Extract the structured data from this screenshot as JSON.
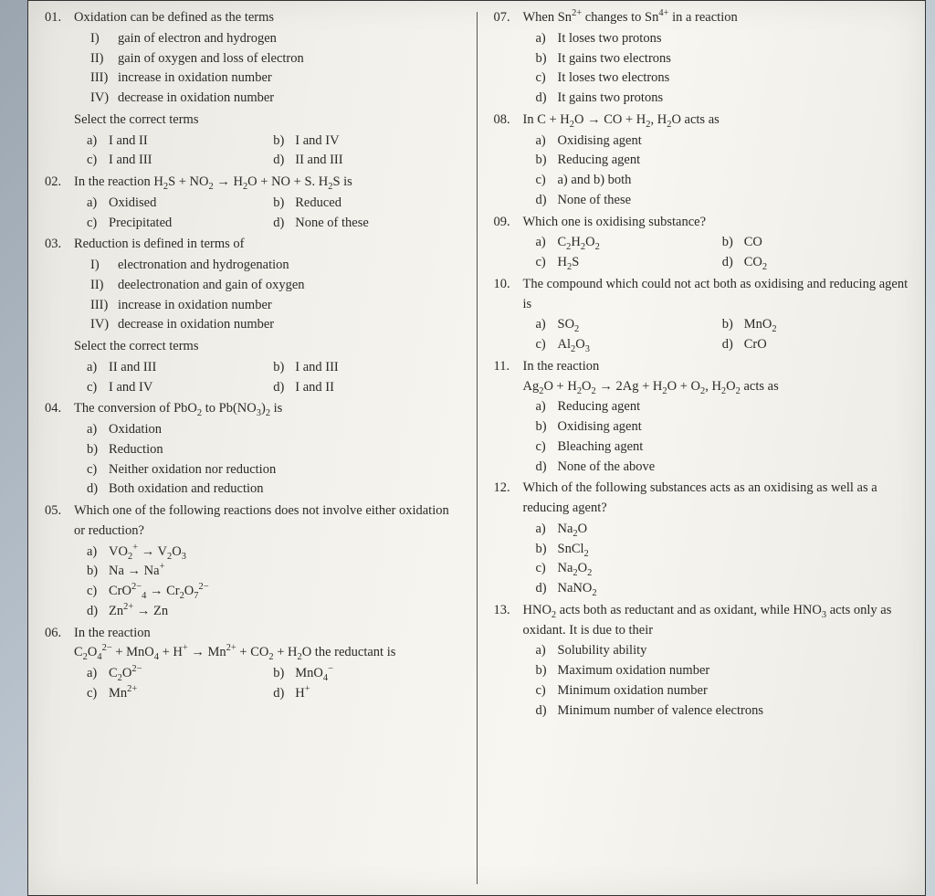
{
  "left": [
    {
      "num": "01.",
      "stem": "Oxidation can be defined as the terms",
      "romans": [
        {
          "n": "I)",
          "t": "gain of electron and hydrogen"
        },
        {
          "n": "II)",
          "t": "gain of oxygen and loss of electron"
        },
        {
          "n": "III)",
          "t": "increase in oxidation number"
        },
        {
          "n": "IV)",
          "t": "decrease in oxidation number"
        }
      ],
      "select": "Select the correct terms",
      "opts": [
        {
          "n": "a)",
          "t": "I and II"
        },
        {
          "n": "b)",
          "t": "I and IV"
        },
        {
          "n": "c)",
          "t": "I and III"
        },
        {
          "n": "d)",
          "t": "II and III"
        }
      ],
      "cols": 2
    },
    {
      "num": "02.",
      "stem_html": "In the reaction H<sub>2</sub>S + NO<sub>2</sub> → H<sub>2</sub>O + NO + S. H<sub>2</sub>S is",
      "opts": [
        {
          "n": "a)",
          "t": "Oxidised"
        },
        {
          "n": "b)",
          "t": "Reduced"
        },
        {
          "n": "c)",
          "t": "Precipitated"
        },
        {
          "n": "d)",
          "t": "None of these"
        }
      ],
      "cols": 2
    },
    {
      "num": "03.",
      "stem": "Reduction is defined in terms of",
      "romans": [
        {
          "n": "I)",
          "t": "electronation and hydrogenation"
        },
        {
          "n": "II)",
          "t": "deelectronation and gain of oxygen"
        },
        {
          "n": "III)",
          "t": "increase in oxidation number"
        },
        {
          "n": "IV)",
          "t": "decrease in oxidation number"
        }
      ],
      "select": "Select the correct terms",
      "opts": [
        {
          "n": "a)",
          "t": "II and III"
        },
        {
          "n": "b)",
          "t": "I and III"
        },
        {
          "n": "c)",
          "t": "I and IV"
        },
        {
          "n": "d)",
          "t": "I and II"
        }
      ],
      "cols": 2
    },
    {
      "num": "04.",
      "stem_html": "The conversion of PbO<sub>2</sub> to Pb(NO<sub>3</sub>)<sub>2</sub> is",
      "opts": [
        {
          "n": "a)",
          "t": "Oxidation"
        },
        {
          "n": "b)",
          "t": "Reduction"
        },
        {
          "n": "c)",
          "t": "Neither oxidation nor reduction"
        },
        {
          "n": "d)",
          "t": "Both oxidation and reduction"
        }
      ],
      "cols": 1
    },
    {
      "num": "05.",
      "stem": "Which one of the following reactions does not involve either oxidation or reduction?",
      "opts": [
        {
          "n": "a)",
          "html": "VO<sub>2</sub><sup>+</sup> → V<sub>2</sub>O<sub>3</sub>"
        },
        {
          "n": "b)",
          "html": "Na → Na<sup>+</sup>"
        },
        {
          "n": "c)",
          "html": "CrO<sup>2−</sup><sub>4</sub> → Cr<sub>2</sub>O<sub>7</sub><sup>2−</sup>"
        },
        {
          "n": "d)",
          "html": "Zn<sup>2+</sup> → Zn"
        }
      ],
      "cols": 1
    },
    {
      "num": "06.",
      "stem_html": "In the reaction<br>C<sub>2</sub>O<sub>4</sub><sup>2−</sup> + MnO<sub>4</sub> + H<sup>+</sup> → Mn<sup>2+</sup> + CO<sub>2</sub> + H<sub>2</sub>O the reductant is",
      "opts": [
        {
          "n": "a)",
          "html": "C<sub>2</sub>O<sup>2−</sup>"
        },
        {
          "n": "b)",
          "html": "MnO<sub>4</sub><sup>−</sup>"
        },
        {
          "n": "c)",
          "html": "Mn<sup>2+</sup>"
        },
        {
          "n": "d)",
          "html": "H<sup>+</sup>"
        }
      ],
      "cols": 2
    }
  ],
  "right": [
    {
      "num": "07.",
      "stem_html": "When Sn<sup>2+</sup> changes to Sn<sup>4+</sup> in a reaction",
      "opts": [
        {
          "n": "a)",
          "t": "It loses two protons"
        },
        {
          "n": "b)",
          "t": "It gains two electrons"
        },
        {
          "n": "c)",
          "t": "It loses two electrons"
        },
        {
          "n": "d)",
          "t": "It gains two protons"
        }
      ],
      "cols": 1
    },
    {
      "num": "08.",
      "stem_html": "In C + H<sub>2</sub>O → CO + H<sub>2</sub>, H<sub>2</sub>O acts as",
      "opts": [
        {
          "n": "a)",
          "t": "Oxidising agent"
        },
        {
          "n": "b)",
          "t": "Reducing agent"
        },
        {
          "n": "c)",
          "t": "a) and b) both"
        },
        {
          "n": "d)",
          "t": "None of these"
        }
      ],
      "cols": 1
    },
    {
      "num": "09.",
      "stem": "Which one is oxidising substance?",
      "opts": [
        {
          "n": "a)",
          "html": "C<sub>2</sub>H<sub>2</sub>O<sub>2</sub>"
        },
        {
          "n": "b)",
          "t": "CO"
        },
        {
          "n": "c)",
          "html": "H<sub>2</sub>S"
        },
        {
          "n": "d)",
          "html": "CO<sub>2</sub>"
        }
      ],
      "cols": 2
    },
    {
      "num": "10.",
      "stem": "The compound which could not act both as oxidising and reducing agent is",
      "opts": [
        {
          "n": "a)",
          "html": "SO<sub>2</sub>"
        },
        {
          "n": "b)",
          "html": "MnO<sub>2</sub>"
        },
        {
          "n": "c)",
          "html": "Al<sub>2</sub>O<sub>3</sub>"
        },
        {
          "n": "d)",
          "t": "CrO"
        }
      ],
      "cols": 2
    },
    {
      "num": "11.",
      "stem_html": "In the reaction<br>Ag<sub>2</sub>O + H<sub>2</sub>O<sub>2</sub> → 2Ag + H<sub>2</sub>O + O<sub>2</sub>, H<sub>2</sub>O<sub>2</sub> acts as",
      "opts": [
        {
          "n": "a)",
          "t": "Reducing agent"
        },
        {
          "n": "b)",
          "t": "Oxidising agent"
        },
        {
          "n": "c)",
          "t": "Bleaching agent"
        },
        {
          "n": "d)",
          "t": "None of the above"
        }
      ],
      "cols": 1
    },
    {
      "num": "12.",
      "stem": "Which of the following substances acts as an oxidising as well as a reducing agent?",
      "opts": [
        {
          "n": "a)",
          "html": "Na<sub>2</sub>O"
        },
        {
          "n": "b)",
          "html": "SnCl<sub>2</sub>"
        },
        {
          "n": "c)",
          "html": "Na<sub>2</sub>O<sub>2</sub>"
        },
        {
          "n": "d)",
          "html": "NaNO<sub>2</sub>"
        }
      ],
      "cols": 1
    },
    {
      "num": "13.",
      "stem_html": "HNO<sub>2</sub> acts both as reductant and as oxidant, while HNO<sub>3</sub> acts only as oxidant. It is due to their",
      "opts": [
        {
          "n": "a)",
          "t": "Solubility ability"
        },
        {
          "n": "b)",
          "t": "Maximum oxidation number"
        },
        {
          "n": "c)",
          "t": "Minimum oxidation number"
        },
        {
          "n": "d)",
          "t": "Minimum number of valence electrons"
        }
      ],
      "cols": 1
    }
  ]
}
